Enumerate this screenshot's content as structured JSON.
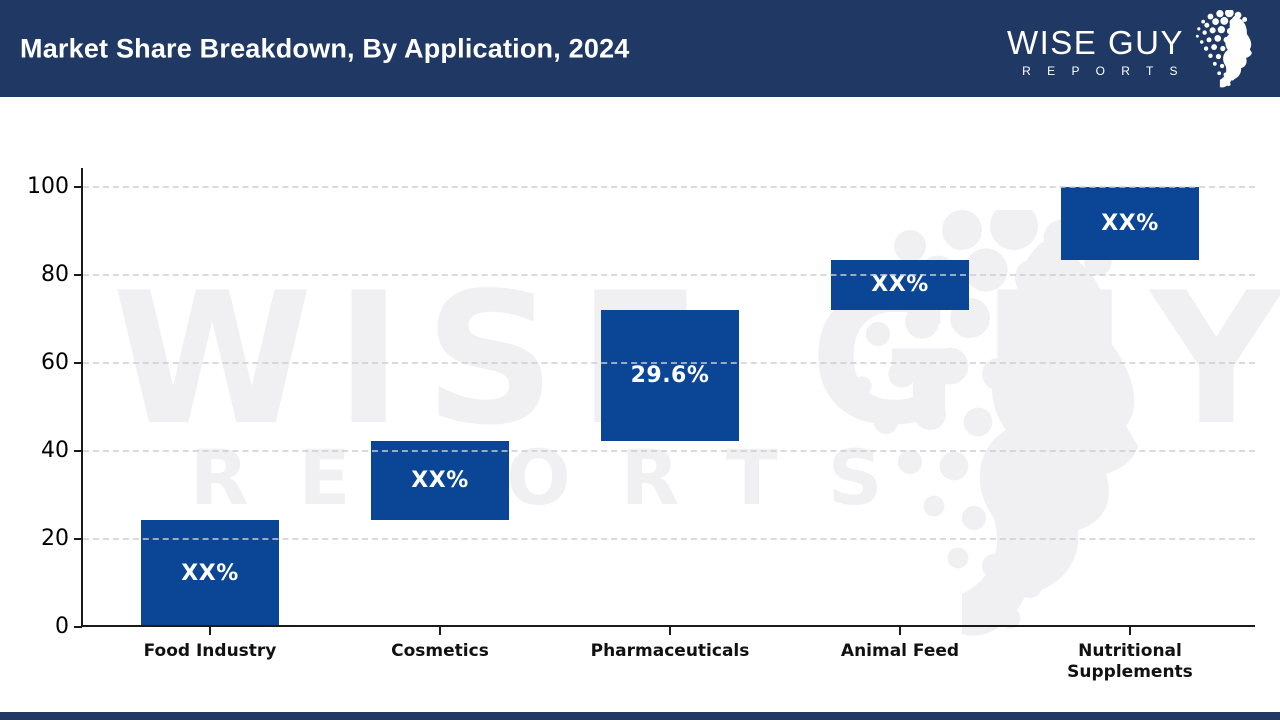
{
  "header": {
    "title": "Market Share Breakdown, By Application, 2024",
    "bg_color": "#1F3864",
    "logo": {
      "name": "WISE GUY",
      "tagline": "R E P O R T S"
    }
  },
  "watermark": {
    "line1": "WISE GUY",
    "line2": "REPORTS"
  },
  "chart_data": {
    "type": "bar",
    "subtype": "waterfall",
    "title": "Market Share Breakdown, By Application, 2024",
    "xlabel": "",
    "ylabel": "",
    "categories": [
      "Food Industry",
      "Cosmetics",
      "Pharmaceuticals",
      "Animal Feed",
      "Nutritional Supplements"
    ],
    "segments": [
      {
        "category": "Food Industry",
        "start": 0,
        "end": 24.2,
        "value": 24.2,
        "label": "XX%"
      },
      {
        "category": "Cosmetics",
        "start": 24.2,
        "end": 42.3,
        "value": 18.1,
        "label": "XX%"
      },
      {
        "category": "Pharmaceuticals",
        "start": 42.3,
        "end": 71.9,
        "value": 29.6,
        "label": "29.6%"
      },
      {
        "category": "Animal Feed",
        "start": 71.9,
        "end": 83.4,
        "value": 11.5,
        "label": "XX%"
      },
      {
        "category": "Nutritional Supplements",
        "start": 83.4,
        "end": 100,
        "value": 16.6,
        "label": "XX%"
      }
    ],
    "yticks": [
      0,
      20,
      40,
      60,
      80,
      100
    ],
    "ylim": [
      0,
      105
    ],
    "bar_color": "#0A4596",
    "grid": "horizontal-dashed",
    "gridline_color": "#DCDCDC",
    "legend": "none"
  }
}
